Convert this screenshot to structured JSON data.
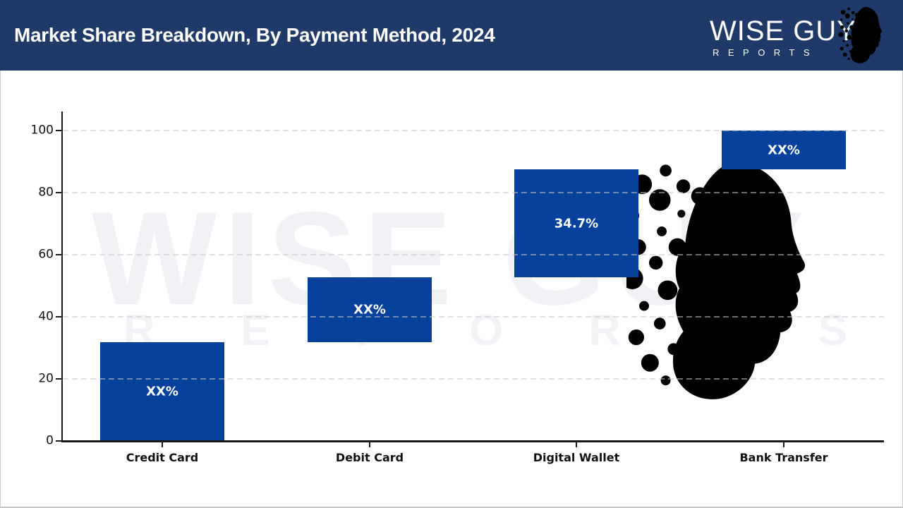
{
  "header": {
    "title": "Market Share Breakdown, By Payment Method, 2024",
    "logo": {
      "line1": "WISE GUY",
      "line2": "REPORTS"
    }
  },
  "watermark": {
    "line1": "WISE GUY",
    "line2": "R E P O R T S"
  },
  "chart_data": {
    "type": "bar",
    "subtype": "waterfall",
    "title": "Market Share Breakdown, By Payment Method, 2024",
    "xlabel": "",
    "ylabel": "",
    "categories": [
      "Credit Card",
      "Debit Card",
      "Digital Wallet",
      "Bank Transfer"
    ],
    "segments": [
      {
        "category": "Credit Card",
        "start": 0,
        "end": 31.8,
        "value": 31.8,
        "value_label": "XX%"
      },
      {
        "category": "Debit Card",
        "start": 31.8,
        "end": 52.7,
        "value": 20.9,
        "value_label": "XX%"
      },
      {
        "category": "Digital Wallet",
        "start": 52.7,
        "end": 87.4,
        "value": 34.7,
        "value_label": "34.7%"
      },
      {
        "category": "Bank Transfer",
        "start": 87.4,
        "end": 100,
        "value": 12.6,
        "value_label": "XX%"
      }
    ],
    "yticks": [
      0,
      20,
      40,
      60,
      80,
      100
    ],
    "ylim": [
      0,
      105
    ],
    "grid": "horizontal-dashed",
    "legend": "none"
  },
  "colors": {
    "header_bg": "#1f3a68",
    "bar": "#07419c",
    "grid": "#d9d9d9",
    "axis": "#1a1a1a",
    "watermark": "#f1f2f5",
    "bar_label": "#ffffff"
  }
}
